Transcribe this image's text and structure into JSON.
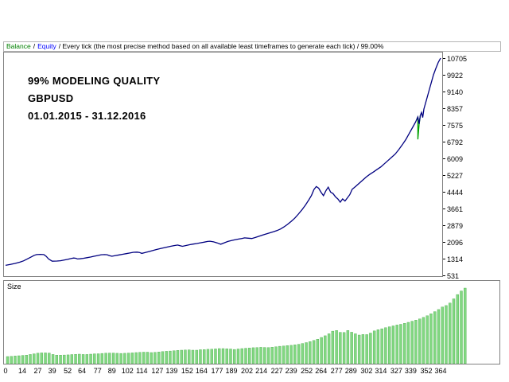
{
  "header": {
    "balance_label": "Balance",
    "separator": "/",
    "equity_label": "Equity",
    "description": "/ Every tick (the most precise method based on all available least timeframes to generate each tick) / 99.00%",
    "balance_color": "#008000",
    "equity_color": "#0000FF"
  },
  "annotation": {
    "line1": "99% MODELING QUALITY",
    "line2": "GBPUSD",
    "line3": "01.01.2015 - 31.12.2016"
  },
  "chart_data": {
    "type": "line",
    "title": "Strategy tester balance/equity graph",
    "x_range": [
      0,
      364
    ],
    "y_range": [
      531,
      10705
    ],
    "y_ticks": [
      10705,
      9922,
      9140,
      8357,
      7575,
      6792,
      6009,
      5227,
      4444,
      3661,
      2879,
      2096,
      1314,
      531
    ],
    "x_ticks": [
      0,
      14,
      27,
      39,
      52,
      64,
      77,
      89,
      102,
      114,
      127,
      139,
      152,
      164,
      177,
      189,
      202,
      214,
      227,
      239,
      252,
      264,
      277,
      289,
      302,
      314,
      327,
      339,
      352,
      364
    ],
    "series": [
      {
        "name": "Equity",
        "color": "#00A000",
        "points": [
          [
            344,
            7820
          ],
          [
            345,
            7950
          ],
          [
            345,
            6900
          ],
          [
            346,
            7620
          ],
          [
            347,
            8020
          ]
        ]
      },
      {
        "name": "Balance",
        "color": "#000080",
        "points": [
          [
            0,
            1000
          ],
          [
            4,
            1040
          ],
          [
            8,
            1090
          ],
          [
            12,
            1150
          ],
          [
            15,
            1210
          ],
          [
            18,
            1290
          ],
          [
            21,
            1380
          ],
          [
            24,
            1470
          ],
          [
            26,
            1505
          ],
          [
            29,
            1515
          ],
          [
            32,
            1505
          ],
          [
            34,
            1420
          ],
          [
            36,
            1300
          ],
          [
            39,
            1195
          ],
          [
            43,
            1200
          ],
          [
            46,
            1215
          ],
          [
            49,
            1250
          ],
          [
            52,
            1280
          ],
          [
            55,
            1320
          ],
          [
            57,
            1345
          ],
          [
            59,
            1330
          ],
          [
            60,
            1300
          ],
          [
            62,
            1305
          ],
          [
            65,
            1330
          ],
          [
            68,
            1360
          ],
          [
            71,
            1390
          ],
          [
            74,
            1425
          ],
          [
            77,
            1460
          ],
          [
            80,
            1495
          ],
          [
            83,
            1505
          ],
          [
            85,
            1495
          ],
          [
            87,
            1455
          ],
          [
            89,
            1425
          ],
          [
            92,
            1460
          ],
          [
            95,
            1490
          ],
          [
            98,
            1520
          ],
          [
            101,
            1550
          ],
          [
            104,
            1580
          ],
          [
            107,
            1610
          ],
          [
            110,
            1620
          ],
          [
            112,
            1605
          ],
          [
            114,
            1560
          ],
          [
            117,
            1600
          ],
          [
            120,
            1645
          ],
          [
            123,
            1690
          ],
          [
            126,
            1740
          ],
          [
            129,
            1780
          ],
          [
            132,
            1815
          ],
          [
            135,
            1855
          ],
          [
            138,
            1890
          ],
          [
            141,
            1925
          ],
          [
            144,
            1950
          ],
          [
            146,
            1920
          ],
          [
            148,
            1890
          ],
          [
            151,
            1930
          ],
          [
            154,
            1965
          ],
          [
            157,
            1995
          ],
          [
            160,
            2020
          ],
          [
            163,
            2055
          ],
          [
            166,
            2085
          ],
          [
            169,
            2120
          ],
          [
            171,
            2130
          ],
          [
            174,
            2100
          ],
          [
            177,
            2050
          ],
          [
            180,
            1990
          ],
          [
            183,
            2055
          ],
          [
            186,
            2120
          ],
          [
            189,
            2160
          ],
          [
            192,
            2195
          ],
          [
            195,
            2230
          ],
          [
            198,
            2260
          ],
          [
            200,
            2285
          ],
          [
            203,
            2270
          ],
          [
            206,
            2255
          ],
          [
            209,
            2305
          ],
          [
            212,
            2360
          ],
          [
            215,
            2415
          ],
          [
            218,
            2470
          ],
          [
            221,
            2520
          ],
          [
            224,
            2570
          ],
          [
            227,
            2625
          ],
          [
            230,
            2700
          ],
          [
            233,
            2800
          ],
          [
            236,
            2920
          ],
          [
            239,
            3060
          ],
          [
            242,
            3210
          ],
          [
            245,
            3400
          ],
          [
            248,
            3600
          ],
          [
            251,
            3830
          ],
          [
            254,
            4090
          ],
          [
            256,
            4280
          ],
          [
            258,
            4550
          ],
          [
            260,
            4690
          ],
          [
            262,
            4610
          ],
          [
            264,
            4420
          ],
          [
            266,
            4260
          ],
          [
            268,
            4490
          ],
          [
            270,
            4660
          ],
          [
            272,
            4430
          ],
          [
            274,
            4360
          ],
          [
            276,
            4210
          ],
          [
            278,
            4110
          ],
          [
            280,
            3960
          ],
          [
            282,
            4110
          ],
          [
            284,
            4010
          ],
          [
            286,
            4160
          ],
          [
            288,
            4310
          ],
          [
            290,
            4560
          ],
          [
            293,
            4700
          ],
          [
            296,
            4850
          ],
          [
            299,
            5000
          ],
          [
            302,
            5150
          ],
          [
            305,
            5270
          ],
          [
            308,
            5380
          ],
          [
            311,
            5500
          ],
          [
            314,
            5610
          ],
          [
            317,
            5760
          ],
          [
            320,
            5910
          ],
          [
            323,
            6060
          ],
          [
            326,
            6210
          ],
          [
            329,
            6420
          ],
          [
            332,
            6650
          ],
          [
            335,
            6900
          ],
          [
            338,
            7200
          ],
          [
            341,
            7500
          ],
          [
            343,
            7700
          ],
          [
            345,
            7950
          ],
          [
            346,
            7620
          ],
          [
            347,
            8020
          ],
          [
            348,
            8160
          ],
          [
            349,
            7920
          ],
          [
            350,
            8320
          ],
          [
            352,
            8720
          ],
          [
            354,
            9120
          ],
          [
            356,
            9520
          ],
          [
            358,
            9920
          ],
          [
            360,
            10220
          ],
          [
            362,
            10500
          ],
          [
            364,
            10705
          ]
        ]
      }
    ]
  },
  "size_panel": {
    "label": "Size",
    "bar_color": "#82D882",
    "bar_edge_color": "#4DAE4D",
    "scale_max": 5.58,
    "bars": [
      0.5,
      0.52,
      0.54,
      0.56,
      0.58,
      0.6,
      0.65,
      0.69,
      0.74,
      0.76,
      0.76,
      0.75,
      0.65,
      0.6,
      0.6,
      0.61,
      0.62,
      0.64,
      0.66,
      0.67,
      0.65,
      0.65,
      0.67,
      0.69,
      0.7,
      0.72,
      0.74,
      0.75,
      0.75,
      0.73,
      0.72,
      0.73,
      0.75,
      0.76,
      0.78,
      0.8,
      0.81,
      0.81,
      0.78,
      0.8,
      0.82,
      0.85,
      0.87,
      0.89,
      0.91,
      0.93,
      0.95,
      0.96,
      0.97,
      0.95,
      0.95,
      0.98,
      0.99,
      1.01,
      1.02,
      1.04,
      1.06,
      1.06,
      1.05,
      1.03,
      1.0,
      1.03,
      1.06,
      1.08,
      1.1,
      1.12,
      1.13,
      1.15,
      1.14,
      1.13,
      1.16,
      1.19,
      1.22,
      1.24,
      1.27,
      1.29,
      1.32,
      1.36,
      1.42,
      1.48,
      1.55,
      1.63,
      1.72,
      1.84,
      1.96,
      2.1,
      2.28,
      2.33,
      2.2,
      2.19,
      2.33,
      2.21,
      2.1,
      2.01,
      2.05,
      2.04,
      2.15,
      2.3,
      2.38,
      2.45,
      2.53,
      2.59,
      2.65,
      2.71,
      2.76,
      2.83,
      2.9,
      2.98,
      3.05,
      3.14,
      3.25,
      3.36,
      3.5,
      3.65,
      3.8,
      3.98,
      4.08,
      4.25,
      4.55,
      4.85,
      5.1,
      5.3
    ]
  }
}
